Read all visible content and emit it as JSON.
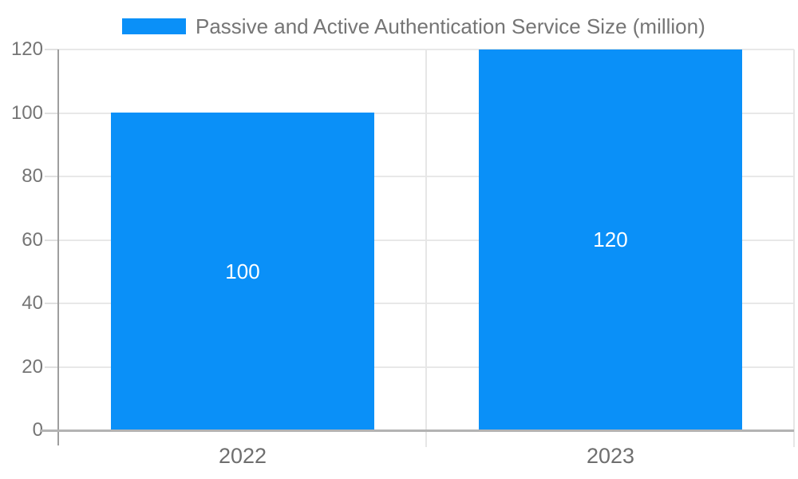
{
  "legend": {
    "label": "Passive and Active Authentication Service Size (million)",
    "swatch_color": "#0a90f8"
  },
  "chart_data": {
    "type": "bar",
    "title": "Passive and Active Authentication Service Size (million)",
    "categories": [
      "2022",
      "2023"
    ],
    "series": [
      {
        "name": "Passive and Active Authentication Service Size (million)",
        "values": [
          100,
          120
        ]
      }
    ],
    "value_labels": [
      "100",
      "120"
    ],
    "xlabel": "",
    "ylabel": "",
    "ylim": [
      0,
      120
    ],
    "yticks": [
      0,
      20,
      40,
      60,
      80,
      100,
      120
    ],
    "grid": true,
    "legend_position": "top",
    "bar_color": "#0a90f8",
    "value_label_color": "#ffffff",
    "axis_label_color": "#757575"
  }
}
